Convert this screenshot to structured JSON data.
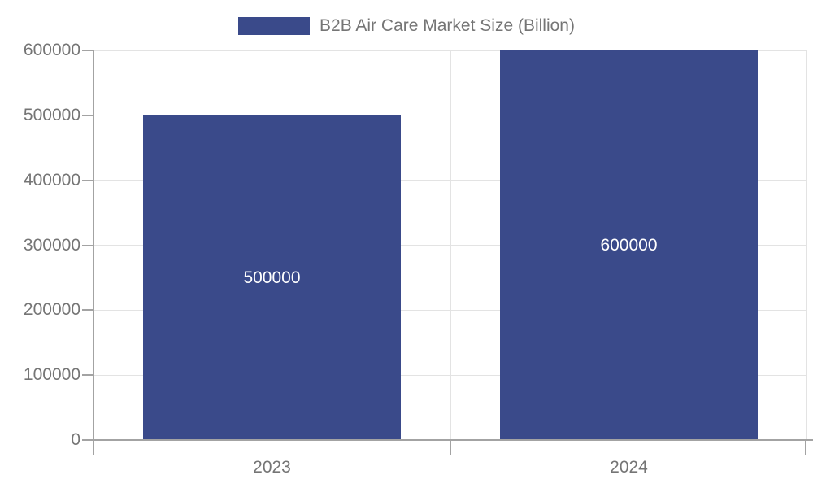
{
  "chart_data": {
    "type": "bar",
    "title": "B2B Air Care Market Size (Billion)",
    "categories": [
      "2023",
      "2024"
    ],
    "series": [
      {
        "name": "B2B Air Care Market Size (Billion)",
        "values": [
          500000,
          600000
        ],
        "data_labels": [
          "500000",
          "600000"
        ]
      }
    ],
    "xlabel": "",
    "ylabel": "",
    "ylim": [
      0,
      600000
    ],
    "y_ticks": [
      0,
      100000,
      200000,
      300000,
      400000,
      500000,
      600000
    ],
    "y_tick_labels": [
      "0",
      "100000",
      "200000",
      "300000",
      "400000",
      "500000",
      "600000"
    ],
    "grid": true,
    "legend_position": "top",
    "colors": {
      "bar": "#3A4A8A",
      "grid_line": "#e3e3e3",
      "axis_line": "#a3a3a3",
      "tick_text": "#757575",
      "bar_label_text": "#ffffff",
      "background": "#ffffff"
    }
  }
}
